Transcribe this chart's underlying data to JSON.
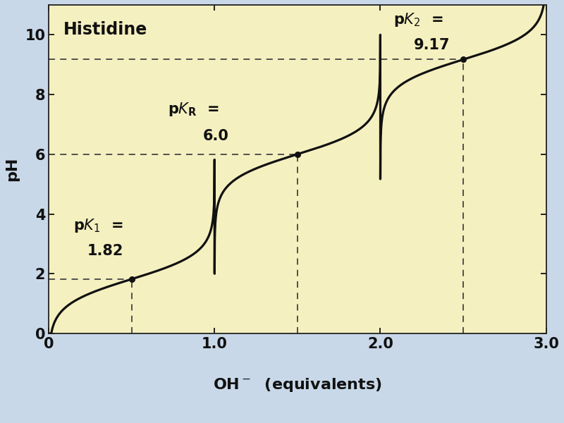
{
  "title": "Histidine",
  "ylabel": "pH",
  "bg_color": "#f5f0c0",
  "outer_bg": "#c8d8e8",
  "curve_color": "#111111",
  "dashed_color": "#444444",
  "text_color": "#111111",
  "xlim": [
    0,
    3.0
  ],
  "ylim": [
    0,
    11.0
  ],
  "xticks": [
    0,
    1.0,
    2.0,
    3.0
  ],
  "yticks": [
    0,
    2,
    4,
    6,
    8,
    10
  ],
  "pK1_x": 0.5,
  "pK1_y": 1.82,
  "pKR_x": 1.5,
  "pKR_y": 6.0,
  "pK2_x": 2.5,
  "pK2_y": 9.17,
  "curve_lw": 2.3,
  "dot_size": 5.5,
  "annot_fontsize": 15,
  "tick_fontsize": 15,
  "label_fontsize": 16,
  "title_fontsize": 17
}
